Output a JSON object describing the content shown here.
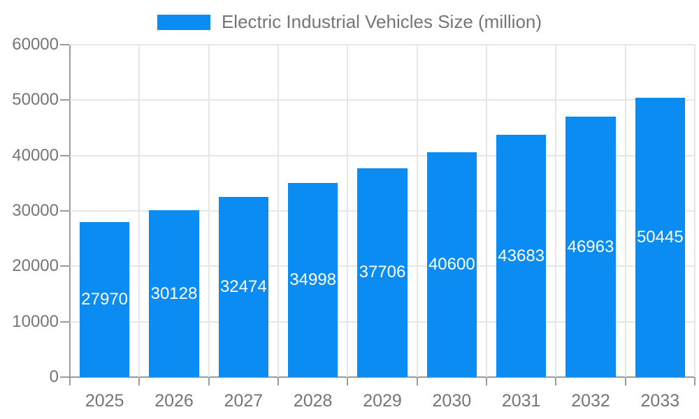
{
  "chart_data": {
    "type": "bar",
    "title": "Electric Industrial Vehicles Size (million)",
    "legend": {
      "position": "top-center",
      "label": "Electric Industrial Vehicles Size (million)"
    },
    "categories": [
      "2025",
      "2026",
      "2027",
      "2028",
      "2029",
      "2030",
      "2031",
      "2032",
      "2033"
    ],
    "series": [
      {
        "name": "Electric Industrial Vehicles Size (million)",
        "values": [
          27970,
          30128,
          32474,
          34998,
          37706,
          40600,
          43683,
          46963,
          50445
        ],
        "color": "#0a8cf2"
      }
    ],
    "value_labels": {
      "show": true,
      "position": "inside-center",
      "color": "#ffffff"
    },
    "xlabel": "",
    "ylabel": "",
    "ylim": [
      0,
      60000
    ],
    "ytick_step": 10000,
    "ytick_labels": [
      "0",
      "10000",
      "20000",
      "30000",
      "40000",
      "50000",
      "60000"
    ],
    "grid": {
      "horizontal": true,
      "vertical": true,
      "color": "#e6e6e6"
    },
    "axis": {
      "line_color": "#9a9a9a",
      "label_color": "#757575"
    },
    "background": "#ffffff"
  }
}
